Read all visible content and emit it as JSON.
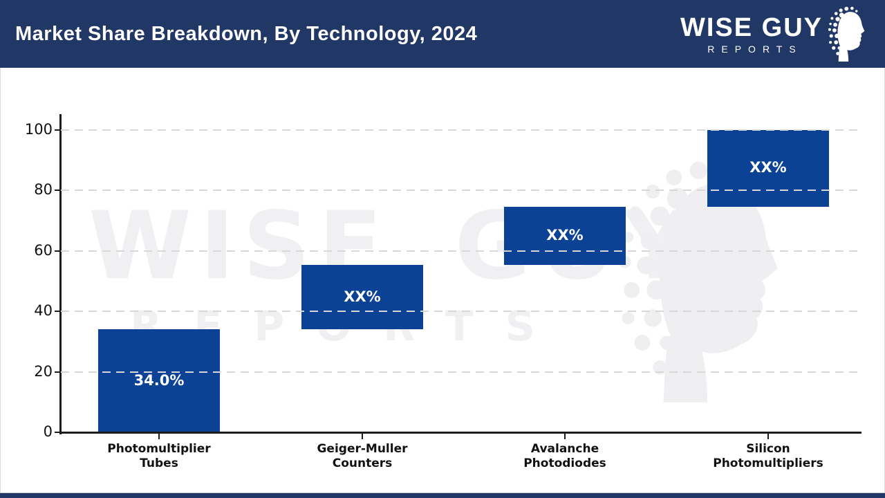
{
  "header": {
    "title": "Market Share Breakdown, By Technology, 2024",
    "bg_color": "#213766",
    "logo": {
      "line1": "WISE GUY",
      "line2": "REPORTS",
      "head_icon": "dotted-head-profile"
    }
  },
  "watermark": {
    "line1": "WISE GUY",
    "line2": "REPORTS",
    "head_icon": "dotted-head-profile"
  },
  "footer": {
    "bar_color": "#213766"
  },
  "chart_data": {
    "type": "bar",
    "variant": "waterfall",
    "title": "Market Share Breakdown, By Technology, 2024",
    "categories": [
      "Photomultiplier Tubes",
      "Geiger-Muller Counters",
      "Avalanche Photodiodes",
      "Silicon Photomultipliers"
    ],
    "segments": [
      {
        "category": "Photomultiplier Tubes",
        "label_lines": [
          "Photomultiplier",
          "Tubes"
        ],
        "start": 0,
        "end": 34,
        "label": "34.0%"
      },
      {
        "category": "Geiger-Muller Counters",
        "label_lines": [
          "Geiger-Muller",
          "Counters"
        ],
        "start": 34,
        "end": 55.3,
        "label": "XX%"
      },
      {
        "category": "Avalanche Photodiodes",
        "label_lines": [
          "Avalanche",
          "Photodiodes"
        ],
        "start": 55.3,
        "end": 74.5,
        "label": "XX%"
      },
      {
        "category": "Silicon Photomultipliers",
        "label_lines": [
          "Silicon",
          "Photomultipliers"
        ],
        "start": 74.5,
        "end": 100,
        "label": "XX%"
      }
    ],
    "ylim": [
      0,
      100
    ],
    "yticks": [
      0,
      20,
      40,
      60,
      80,
      100
    ],
    "xlabel": "",
    "ylabel": "",
    "bar_color": "#0b4296",
    "bar_label_color": "#ffffff",
    "grid": true,
    "grid_style": "dashed",
    "grid_color": "#d8d8d8",
    "axis_color": "#1c1c1c",
    "legend": false
  }
}
